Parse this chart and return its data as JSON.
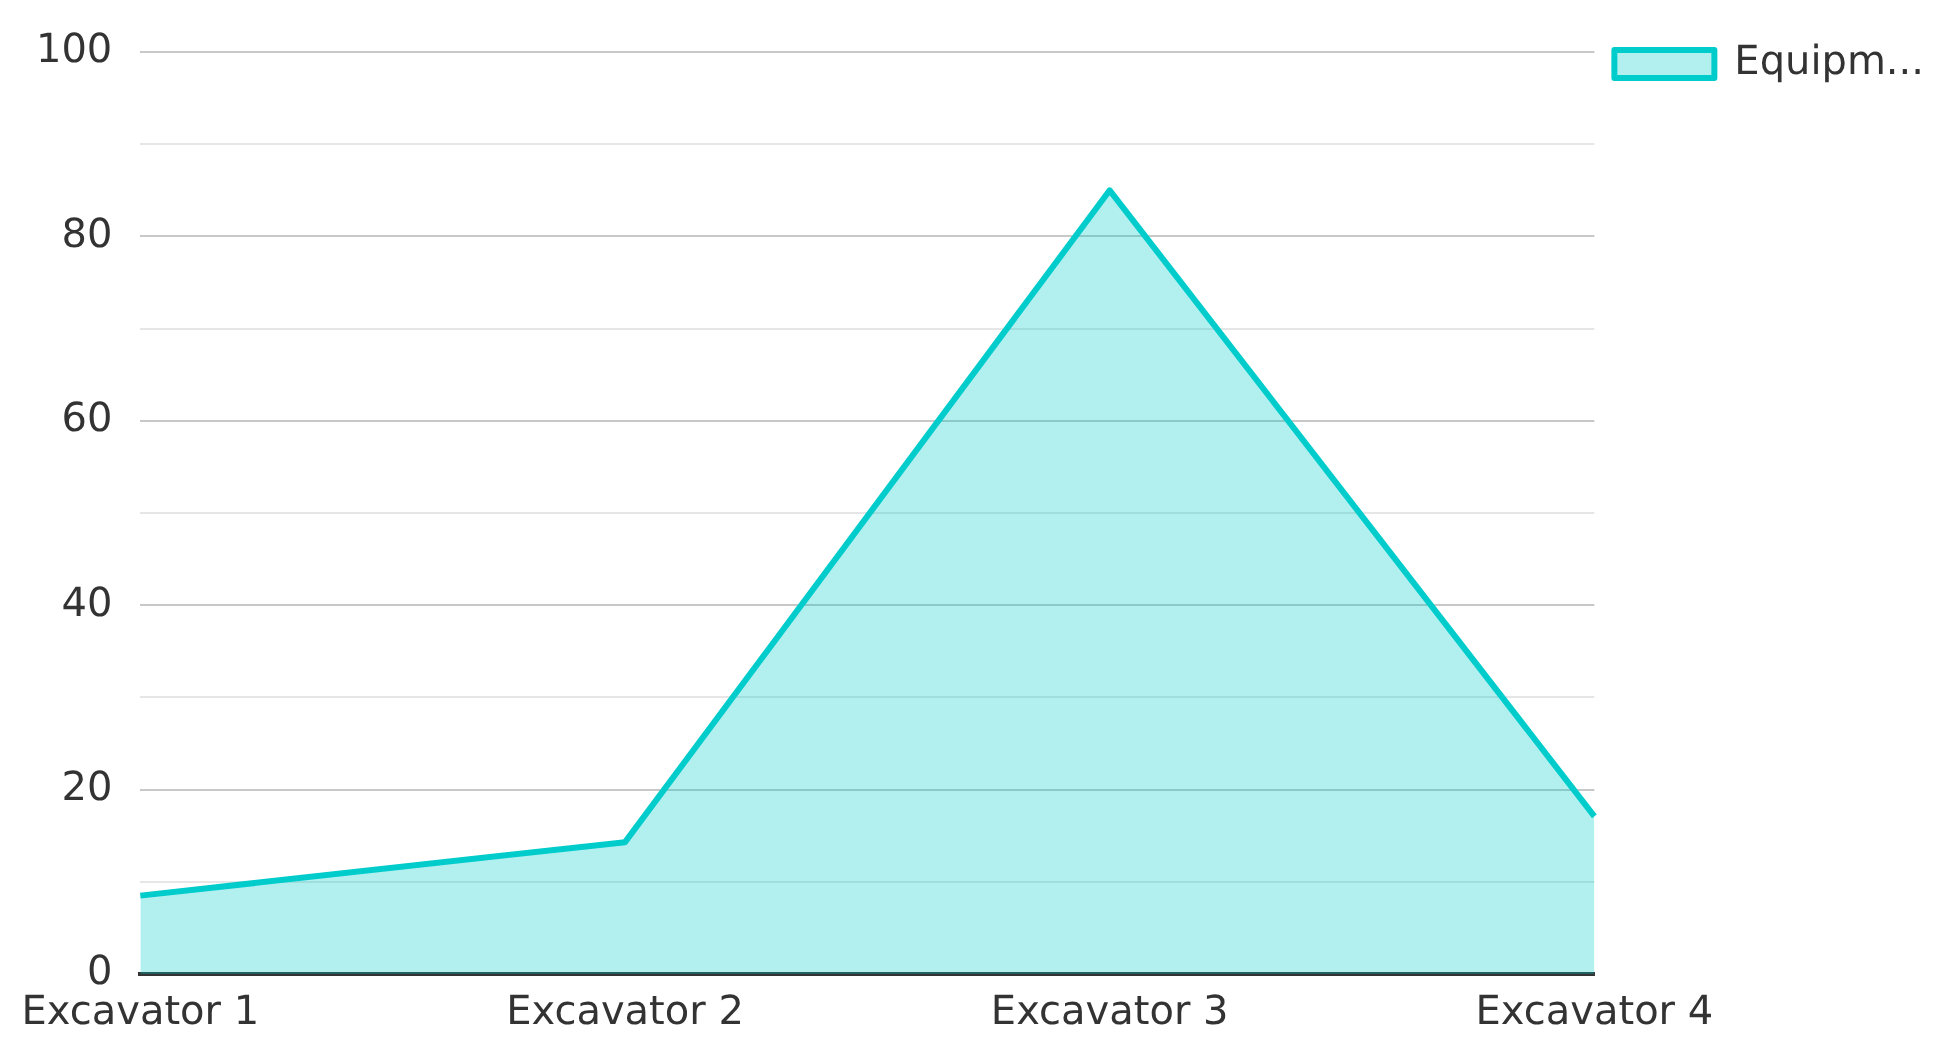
{
  "chart_data": {
    "type": "area",
    "categories": [
      "Excavator 1",
      "Excavator 2",
      "Excavator 3",
      "Excavator 4"
    ],
    "series": [
      {
        "name": "Equipm...",
        "color": "#00cccc",
        "values": [
          8.5,
          14.3,
          85,
          17.1
        ]
      }
    ],
    "ylim": [
      0,
      100
    ],
    "yticks": [
      0,
      {
        "value": 10,
        "label": null
      },
      20,
      {
        "value": 30,
        "label": null
      },
      40,
      {
        "value": 50,
        "label": null
      },
      60,
      {
        "value": 70,
        "label": null
      },
      80,
      {
        "value": 90,
        "label": null
      },
      100
    ],
    "grid": "y",
    "legend": "top right",
    "marker": "none",
    "line_style": "solid"
  }
}
